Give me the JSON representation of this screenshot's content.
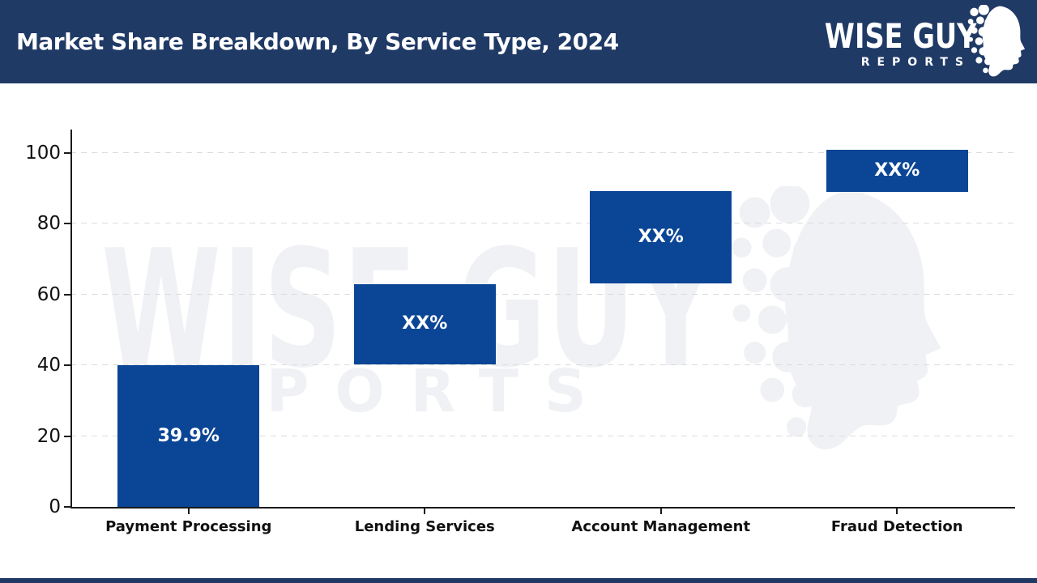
{
  "header": {
    "title": "Market Share Breakdown, By Service Type, 2024",
    "logo": {
      "line1": "WISE GUY",
      "line2": "REPORTS"
    }
  },
  "watermark": {
    "line1": "WISE GUY",
    "line2": "REPORTS"
  },
  "colors": {
    "header_bg": "#203a66",
    "footer_bg": "#1f3864",
    "bar": "#0b4596",
    "bar_label": "#ffffff",
    "watermark": "#f0f1f4",
    "axis": "#1a1a1a",
    "grid": "#dcdcdc"
  },
  "chart_data": {
    "type": "bar",
    "subtype": "waterfall",
    "title": "Market Share Breakdown, By Service Type, 2024",
    "categories": [
      "Payment Processing",
      "Lending Services",
      "Account Management",
      "Fraud Detection"
    ],
    "segments": [
      {
        "category": "Payment Processing",
        "start": 0,
        "end": 39.9,
        "label": "39.9%"
      },
      {
        "category": "Lending Services",
        "start": 40.2,
        "end": 62.9,
        "label": "XX%"
      },
      {
        "category": "Account Management",
        "start": 63.1,
        "end": 89.2,
        "label": "XX%"
      },
      {
        "category": "Fraud Detection",
        "start": 88.9,
        "end": 100.8,
        "label": "XX%"
      }
    ],
    "xlabel": "",
    "ylabel": "",
    "ylim": [
      0,
      106
    ],
    "yticks": [
      0,
      20,
      40,
      60,
      80,
      100
    ],
    "grid": "horizontal-dashed",
    "legend": "none",
    "bar_color": "#0b4596",
    "label_color": "#ffffff"
  }
}
